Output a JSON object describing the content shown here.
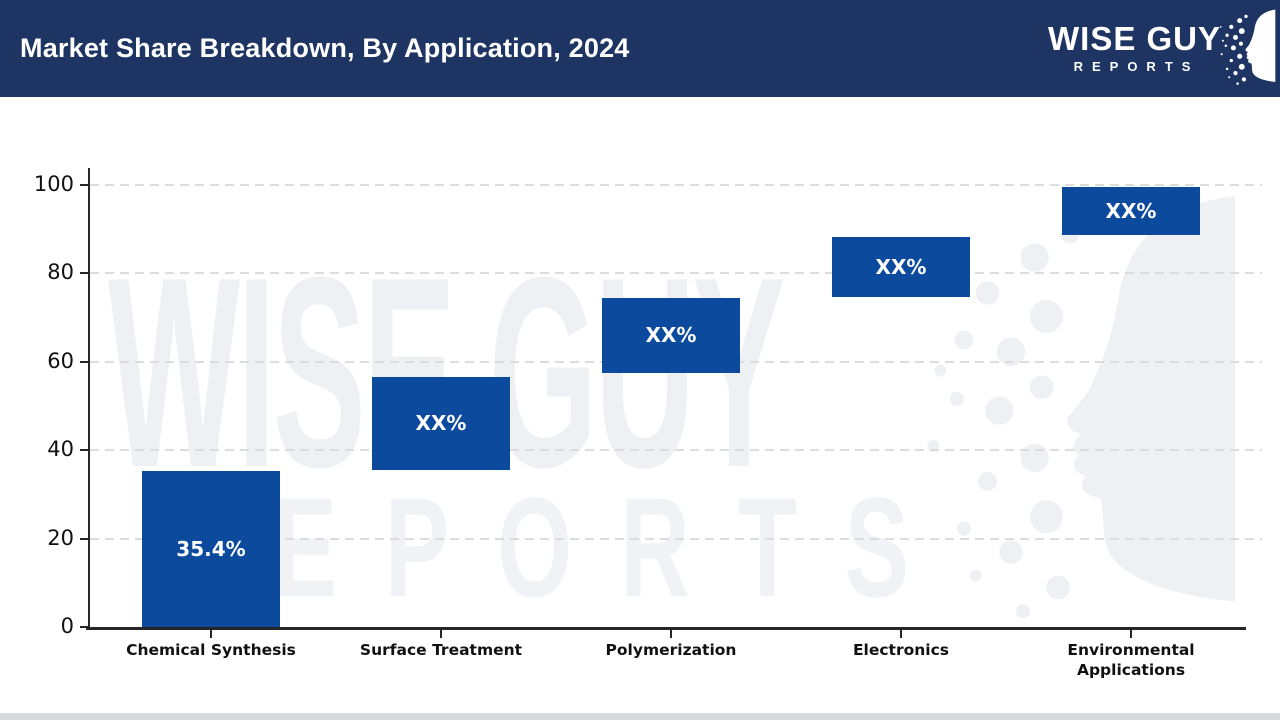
{
  "header": {
    "title": "Market Share Breakdown, By Application, 2024",
    "background_color": "#1e3563"
  },
  "logo": {
    "name": "wise-guy-reports",
    "line1": "WISE GUY",
    "line2": "REPORTS"
  },
  "watermark": {
    "line1": "WISE GUY",
    "line2": "REPORTS"
  },
  "chart_data": {
    "type": "bar",
    "subtype": "waterfall",
    "title": "Market Share Breakdown, By Application, 2024",
    "categories": [
      "Chemical Synthesis",
      "Surface Treatment",
      "Polymerization",
      "Electronics",
      "Environmental Applications"
    ],
    "segments": [
      {
        "category": "Chemical Synthesis",
        "base": 0,
        "top": 35.4,
        "label": "35.4%"
      },
      {
        "category": "Surface Treatment",
        "base": 35.5,
        "top": 56.6,
        "label": "XX%"
      },
      {
        "category": "Polymerization",
        "base": 57.5,
        "top": 74.4,
        "label": "XX%"
      },
      {
        "category": "Electronics",
        "base": 74.6,
        "top": 88.2,
        "label": "XX%"
      },
      {
        "category": "Environmental Applications",
        "base": 88.8,
        "top": 99.6,
        "label": "XX%"
      }
    ],
    "yticks": [
      0,
      20,
      40,
      60,
      80,
      100
    ],
    "ylim": [
      0,
      100
    ],
    "xlabel": "",
    "ylabel": "",
    "grid": "horizontal dashed",
    "legend": "none",
    "bar_color": "#0c4a9e",
    "bar_label_color": "#ffffff",
    "axis_color": "#262626"
  }
}
